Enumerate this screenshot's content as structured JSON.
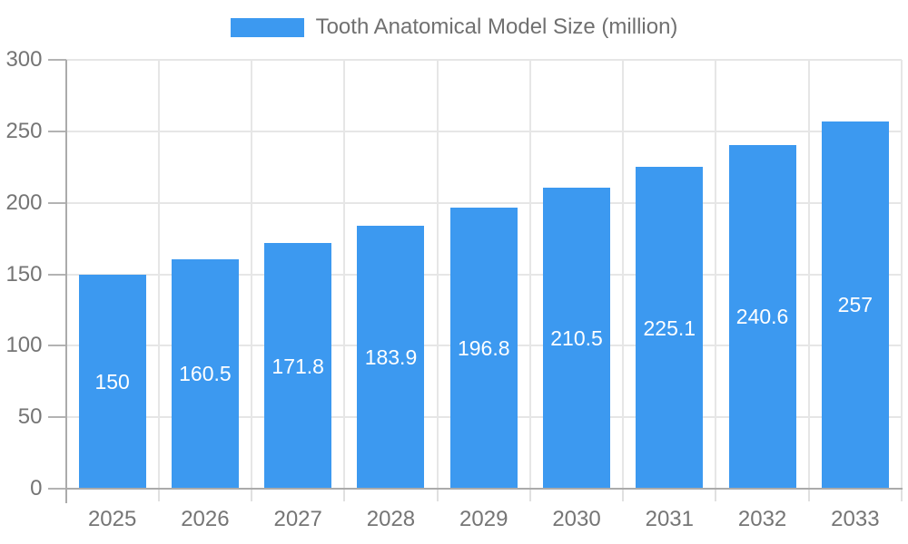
{
  "chart_data": {
    "type": "bar",
    "title": "Tooth Anatomical Model Size (million)",
    "categories": [
      "2025",
      "2026",
      "2027",
      "2028",
      "2029",
      "2030",
      "2031",
      "2032",
      "2033"
    ],
    "values": [
      150,
      160.5,
      171.8,
      183.9,
      196.8,
      210.5,
      225.1,
      240.6,
      257
    ],
    "value_labels": [
      "150",
      "160.5",
      "171.8",
      "183.9",
      "196.8",
      "210.5",
      "225.1",
      "240.6",
      "257"
    ],
    "xlabel": "",
    "ylabel": "",
    "ylim": [
      0,
      300
    ],
    "yticks": [
      0,
      50,
      100,
      150,
      200,
      250,
      300
    ],
    "grid": true,
    "legend_position": "top-center",
    "colors": {
      "bar": "#3C99F0",
      "axis_line": "#ABABAB",
      "grid_line": "#E6E6E6",
      "tick_line": "#B3B3B3",
      "sub_tick_line": "#E0E0E0",
      "axis_label": "#757575",
      "legend_text": "#707070",
      "value_label": "#FFFFFF",
      "background": "#FFFFFF"
    }
  }
}
